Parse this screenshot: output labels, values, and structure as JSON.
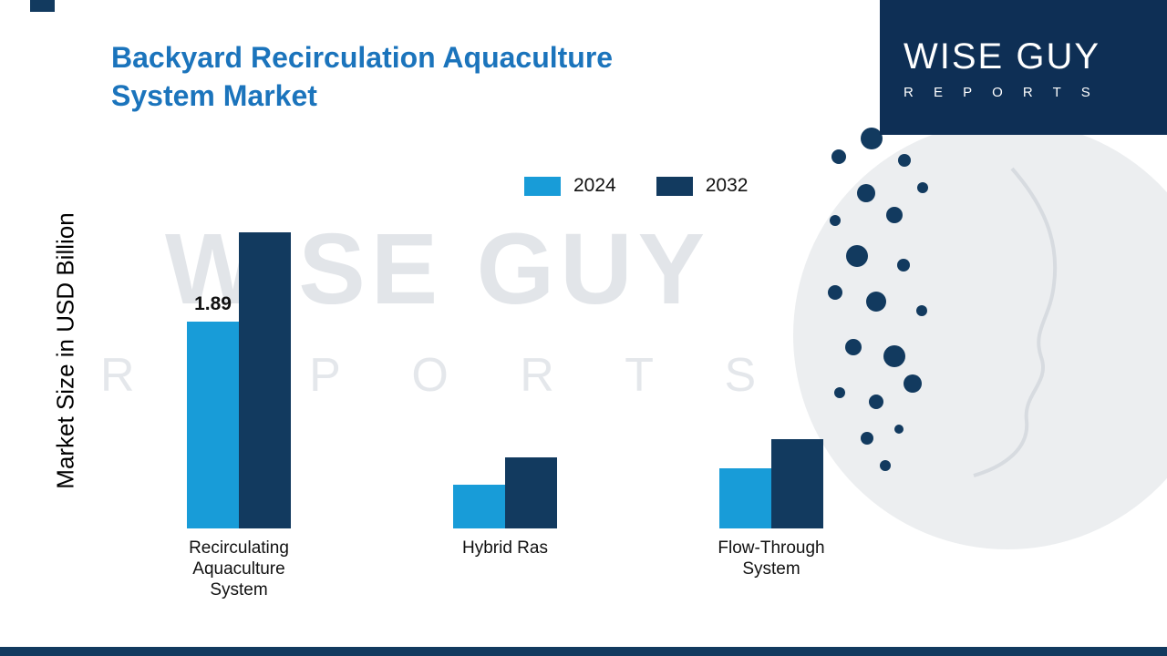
{
  "title": "Backyard Recirculation Aquaculture System Market",
  "logo": {
    "name": "WISE GUY",
    "sub": "R E P O R T S"
  },
  "watermark": {
    "line1": "WISE GUY",
    "line2": "R E P O R T S"
  },
  "colors": {
    "title_blue": "#1b74bc",
    "series_2024_blue": "#189cd8",
    "series_2032_navy": "#123a5f",
    "logo_background_navy": "#0e2f55",
    "circle_gray": "#eceef0",
    "watermark_gray": "#b9c1cb"
  },
  "chart_data": {
    "type": "bar",
    "title": "Backyard Recirculation Aquaculture System Market",
    "ylabel": "Market Size in USD Billion",
    "xlabel": "",
    "unit": "USD Billion",
    "grid": false,
    "legend_position": "top",
    "ylim": [
      0,
      3
    ],
    "categories": [
      "Recirculating Aquaculture System",
      "Hybrid Ras",
      "Flow-Through System"
    ],
    "series": [
      {
        "name": "2024",
        "color": "#189cd8",
        "values": [
          1.89,
          0.4,
          0.55
        ],
        "value_labels": [
          "1.89",
          "",
          ""
        ]
      },
      {
        "name": "2032",
        "color": "#123a5f",
        "values": [
          2.71,
          0.65,
          0.82
        ],
        "value_labels": [
          "",
          "",
          ""
        ]
      }
    ]
  }
}
